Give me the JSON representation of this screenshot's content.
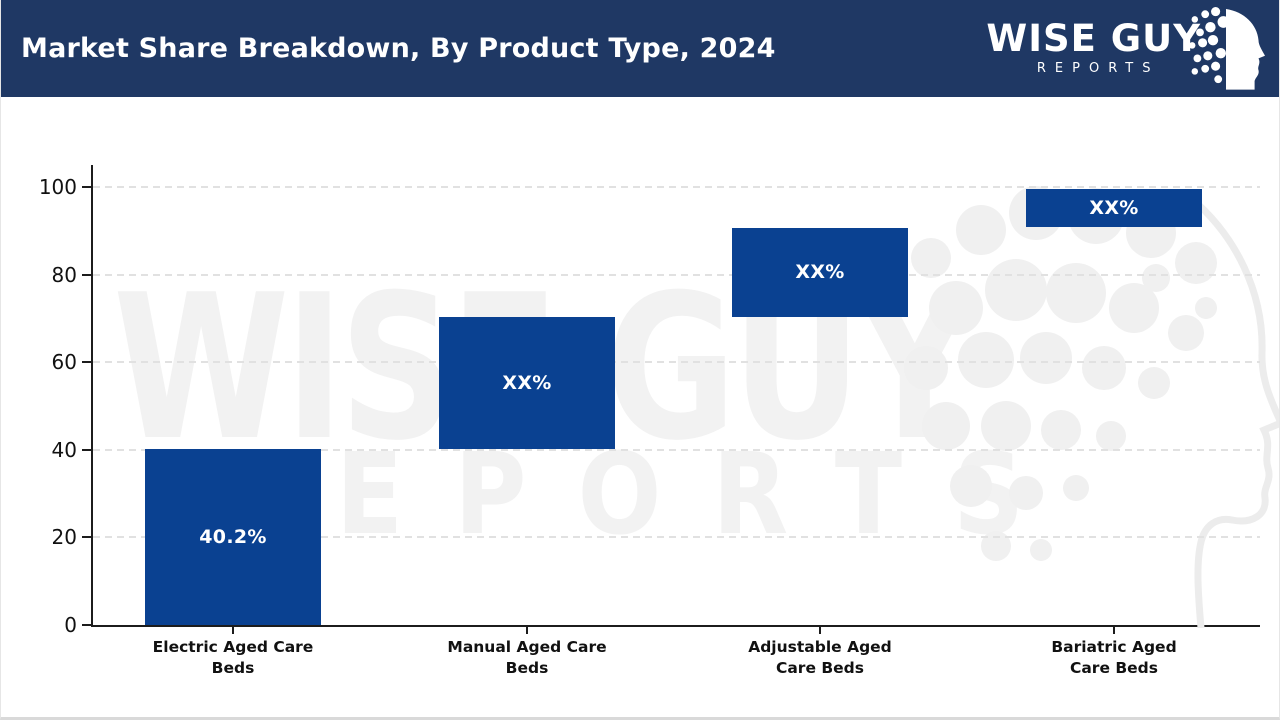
{
  "header": {
    "title": "Market Share Breakdown, By Product Type, 2024",
    "logo": {
      "line1": "WISE GUY",
      "line2": "REPORTS"
    }
  },
  "watermark": {
    "line1": "WISE GUY",
    "line2": "REPORTS"
  },
  "colors": {
    "header_bg": "#1f3864",
    "bar": "#0a4191",
    "bar_label": "#ffffff",
    "gridline": "#e1e1e1",
    "axis": "#1c1c1c",
    "watermark": "#f2f2f2"
  },
  "chart_data": {
    "type": "bar",
    "subtype": "waterfall",
    "title": "Market Share Breakdown, By Product Type, 2024",
    "categories": [
      "Electric Aged Care\nBeds",
      "Manual Aged Care\nBeds",
      "Adjustable Aged\nCare Beds",
      "Bariatric Aged\nCare Beds"
    ],
    "segments": [
      {
        "label": "40.2%",
        "start": 0,
        "end": 40.2
      },
      {
        "label": "XX%",
        "start": 40.2,
        "end": 70.4
      },
      {
        "label": "XX%",
        "start": 70.4,
        "end": 90.6
      },
      {
        "label": "XX%",
        "start": 90.8,
        "end": 99.6
      }
    ],
    "yticks": [
      0,
      20,
      40,
      60,
      80,
      100
    ],
    "ylim": [
      0,
      105
    ],
    "xlabel": "",
    "ylabel": "",
    "grid": "horizontal-dashed",
    "legend": "none"
  }
}
